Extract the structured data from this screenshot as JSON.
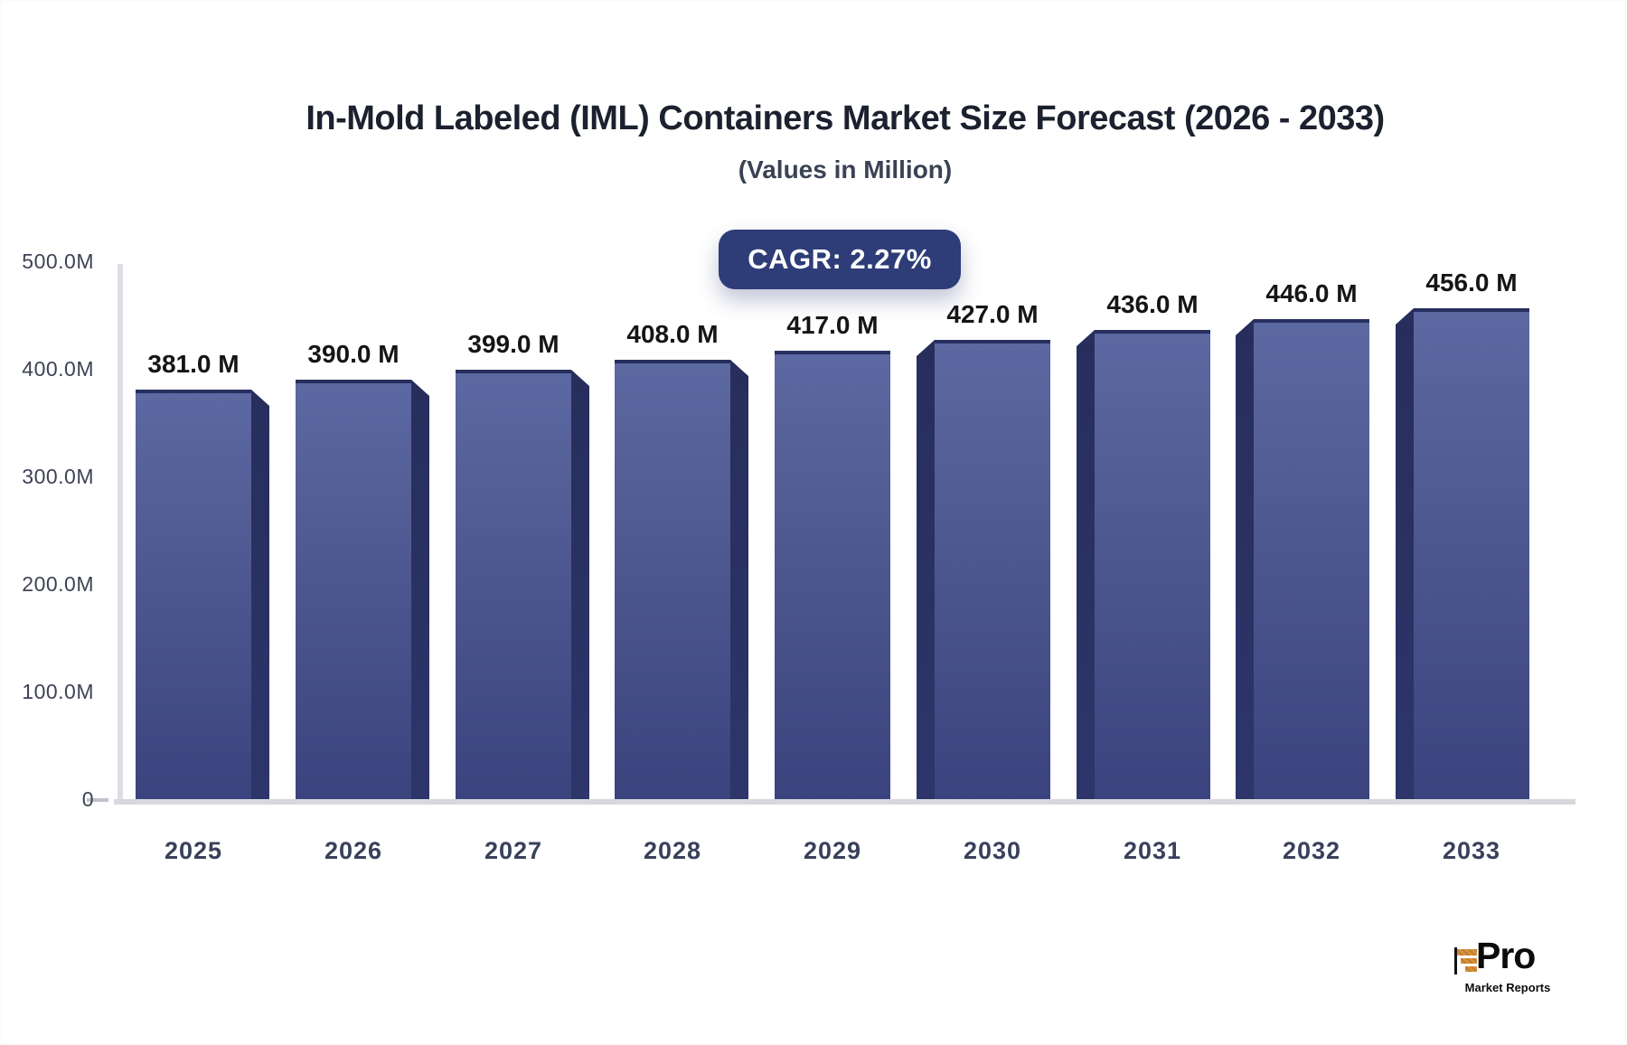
{
  "header": {
    "title": "In-Mold Labeled (IML) Containers Market Size Forecast (2026 - 2033)",
    "subtitle": "(Values in Million)",
    "cagr_badge": "CAGR: 2.27%"
  },
  "chart_data": {
    "type": "bar",
    "title": "In-Mold Labeled (IML) Containers Market Size Forecast (2026 - 2033)",
    "subtitle": "(Values in Million)",
    "unit": "Million",
    "categories": [
      "2025",
      "2026",
      "2027",
      "2028",
      "2029",
      "2030",
      "2031",
      "2032",
      "2033"
    ],
    "values": [
      381,
      390,
      399,
      408,
      417,
      427,
      436,
      446,
      456
    ],
    "value_labels": [
      "381.0 M",
      "390.0 M",
      "399.0 M",
      "408.0 M",
      "417.0 M",
      "427.0 M",
      "436.0 M",
      "446.0 M",
      "456.0 M"
    ],
    "ytick_labels": [
      "500.0M",
      "400.0M",
      "300.0M",
      "200.0M",
      "100.0M",
      "0"
    ],
    "ytick_values": [
      500,
      400,
      300,
      200,
      100,
      0
    ],
    "ylim": [
      0,
      500
    ],
    "xlabel": "",
    "ylabel": "",
    "grid": false,
    "legend": false,
    "cagr": "2.27%",
    "colors": {
      "bar_face_top": "#5c68a1",
      "bar_face_bottom": "#3a437d",
      "bar_side": "#2b325f",
      "badge_background": "#2e3d78",
      "axis_line": "#d6d8dd",
      "label_text": "#151515"
    }
  },
  "logo": {
    "name": "Pro",
    "tagline": "Market Reports",
    "accent_color": "#d8923e"
  }
}
